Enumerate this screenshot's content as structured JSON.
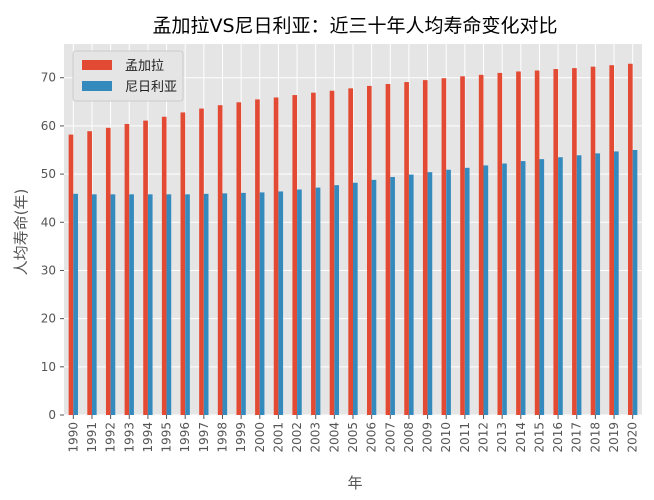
{
  "chart_data": {
    "type": "bar",
    "title": "孟加拉VS尼日利亚：近三十年人均寿命变化对比",
    "xlabel": "年",
    "ylabel": "人均寿命(年)",
    "ylim": [
      0,
      77
    ],
    "yticks": [
      0,
      10,
      20,
      30,
      40,
      50,
      60,
      70
    ],
    "grid": true,
    "legend_position": "top-left",
    "categories": [
      "1990",
      "1991",
      "1992",
      "1993",
      "1994",
      "1995",
      "1996",
      "1997",
      "1998",
      "1999",
      "2000",
      "2001",
      "2002",
      "2003",
      "2004",
      "2005",
      "2006",
      "2007",
      "2008",
      "2009",
      "2010",
      "2011",
      "2012",
      "2013",
      "2014",
      "2015",
      "2016",
      "2017",
      "2018",
      "2019",
      "2020"
    ],
    "series": [
      {
        "name": "孟加拉",
        "color": "#E24A33",
        "values": [
          58.2,
          58.9,
          59.6,
          60.4,
          61.1,
          61.9,
          62.8,
          63.6,
          64.3,
          64.9,
          65.5,
          65.9,
          66.4,
          66.9,
          67.3,
          67.8,
          68.3,
          68.7,
          69.1,
          69.5,
          69.9,
          70.3,
          70.6,
          71.0,
          71.3,
          71.5,
          71.8,
          72.0,
          72.3,
          72.6,
          72.9
        ]
      },
      {
        "name": "尼日利亚",
        "color": "#348ABD",
        "values": [
          45.9,
          45.8,
          45.8,
          45.8,
          45.8,
          45.8,
          45.8,
          45.9,
          46.0,
          46.1,
          46.2,
          46.4,
          46.8,
          47.2,
          47.7,
          48.2,
          48.8,
          49.4,
          49.9,
          50.4,
          50.9,
          51.3,
          51.8,
          52.2,
          52.7,
          53.1,
          53.5,
          53.9,
          54.3,
          54.7,
          55.0
        ]
      }
    ]
  },
  "colors": {
    "plot_background": "#E5E5E5",
    "grid": "#FFFFFF"
  }
}
